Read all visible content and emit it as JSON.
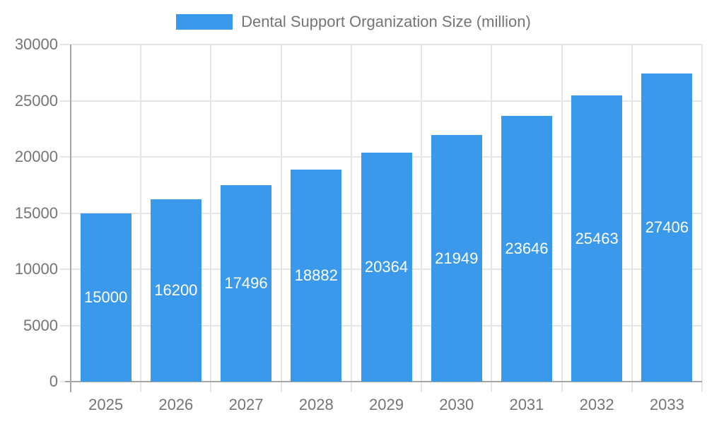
{
  "chart_data": {
    "type": "bar",
    "series_name": "Dental Support Organization Size (million)",
    "categories": [
      "2025",
      "2026",
      "2027",
      "2028",
      "2029",
      "2030",
      "2031",
      "2032",
      "2033"
    ],
    "values": [
      15000,
      16200,
      17496,
      18882,
      20364,
      21949,
      23646,
      25463,
      27406
    ],
    "bar_value_labels": [
      "15000",
      "16200",
      "17496",
      "18882",
      "20364",
      "21949",
      "23646",
      "25463",
      "27406"
    ],
    "xlabel": "",
    "ylabel": "",
    "ylim": [
      0,
      30000
    ],
    "y_ticks": [
      0,
      5000,
      10000,
      15000,
      20000,
      25000,
      30000
    ],
    "y_tick_labels": [
      "0",
      "5000",
      "10000",
      "15000",
      "20000",
      "25000",
      "30000"
    ],
    "grid": true,
    "legend_position": "top",
    "value_label_position": "inside-center",
    "colors": {
      "bar": "#3B99EC",
      "grid": "#E6E6E6",
      "axis": "#A6A6A6",
      "tick_text": "#757575",
      "value_label": "#FFFFFF",
      "background": "#FFFFFF"
    }
  }
}
